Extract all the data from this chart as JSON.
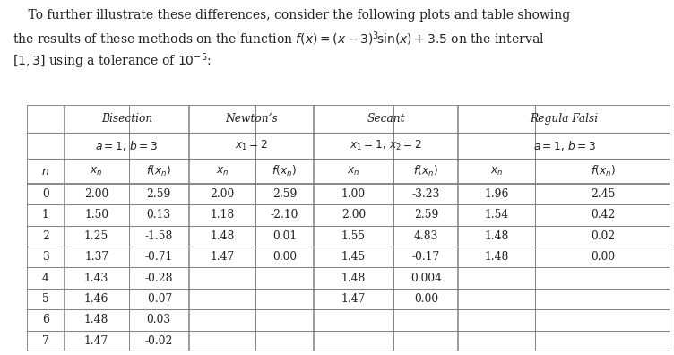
{
  "text_lines": [
    "    To further illustrate these differences, consider the following plots and table showing",
    "the results of these methods on the function $f(x) = (x-3)^3\\!\\sin(x)+3.5$ on the interval",
    "$[1,3]$ using a tolerance of $10^{-5}$:"
  ],
  "headers": [
    "Bisection",
    "Newton’s",
    "Secant",
    "Regula Falsi"
  ],
  "subheaders": [
    "$a=1,\\, b=3$",
    "$x_1=2$",
    "$x_1=1,\\, x_2=2$",
    "$a=1,\\, b=3$"
  ],
  "col_labels": [
    "$n$",
    "$x_n$",
    "$f(x_n)$",
    "$x_n$",
    "$f(x_n)$",
    "$x_n$",
    "$f(x_n)$",
    "$x_n$",
    "$f(x_n)$"
  ],
  "rows": [
    [
      "0",
      "2.00",
      "2.59",
      "2.00",
      "2.59",
      "1.00",
      "-3.23",
      "1.96",
      "2.45"
    ],
    [
      "1",
      "1.50",
      "0.13",
      "1.18",
      "-2.10",
      "2.00",
      "2.59",
      "1.54",
      "0.42"
    ],
    [
      "2",
      "1.25",
      "-1.58",
      "1.48",
      "0.01",
      "1.55",
      "4.83",
      "1.48",
      "0.02"
    ],
    [
      "3",
      "1.37",
      "-0.71",
      "1.47",
      "0.00",
      "1.45",
      "-0.17",
      "1.48",
      "0.00"
    ],
    [
      "4",
      "1.43",
      "-0.28",
      "",
      "",
      "1.48",
      "0.004",
      "",
      ""
    ],
    [
      "5",
      "1.46",
      "-0.07",
      "",
      "",
      "1.47",
      "0.00",
      "",
      ""
    ],
    [
      "6",
      "1.48",
      "0.03",
      "",
      "",
      "",
      "",
      "",
      ""
    ],
    [
      "7",
      "1.47",
      "-0.02",
      "",
      "",
      "",
      "",
      "",
      ""
    ]
  ],
  "bg_color": "#ffffff",
  "text_color": "#231f20",
  "line_color": "#808080",
  "font_size_text": 10.0,
  "font_size_table": 8.8
}
